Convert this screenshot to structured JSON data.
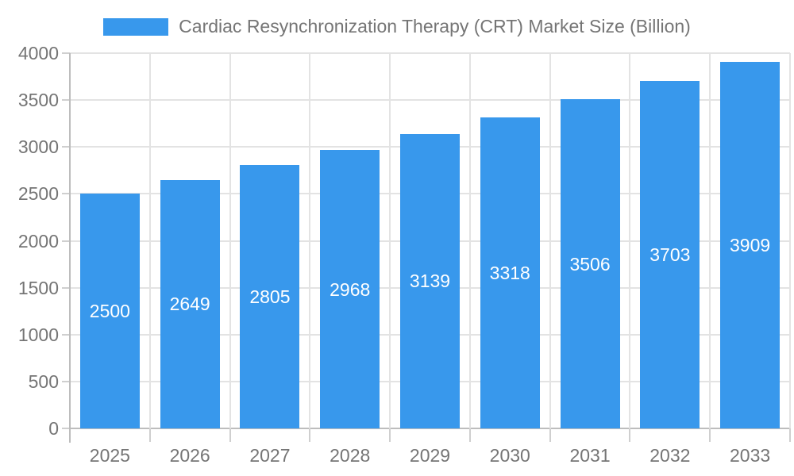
{
  "legend": {
    "label": "Cardiac Resynchronization Therapy (CRT) Market Size (Billion)"
  },
  "chart_data": {
    "type": "bar",
    "title": "Cardiac Resynchronization Therapy (CRT) Market Size (Billion)",
    "series_name": "Cardiac Resynchronization Therapy (CRT) Market Size (Billion)",
    "categories": [
      "2025",
      "2026",
      "2027",
      "2028",
      "2029",
      "2030",
      "2031",
      "2032",
      "2033"
    ],
    "values": [
      2500,
      2649,
      2805,
      2968,
      3139,
      3318,
      3506,
      3703,
      3909
    ],
    "data_labels": [
      "2500",
      "2649",
      "2805",
      "2968",
      "3139",
      "3318",
      "3506",
      "3703",
      "3909"
    ],
    "xlabel": "",
    "ylabel": "",
    "ylim": [
      0,
      4000
    ],
    "yticks": [
      0,
      500,
      1000,
      1500,
      2000,
      2500,
      3000,
      3500,
      4000
    ],
    "grid": true,
    "legend_position": "top"
  },
  "colors": {
    "bar": "#3898EC",
    "grid": "#E3E3E3",
    "axis": "#BDBDBD",
    "tick": "#CFCFCF",
    "text": "#757575",
    "value_label": "#FFFFFF",
    "background": "#FFFFFF"
  }
}
